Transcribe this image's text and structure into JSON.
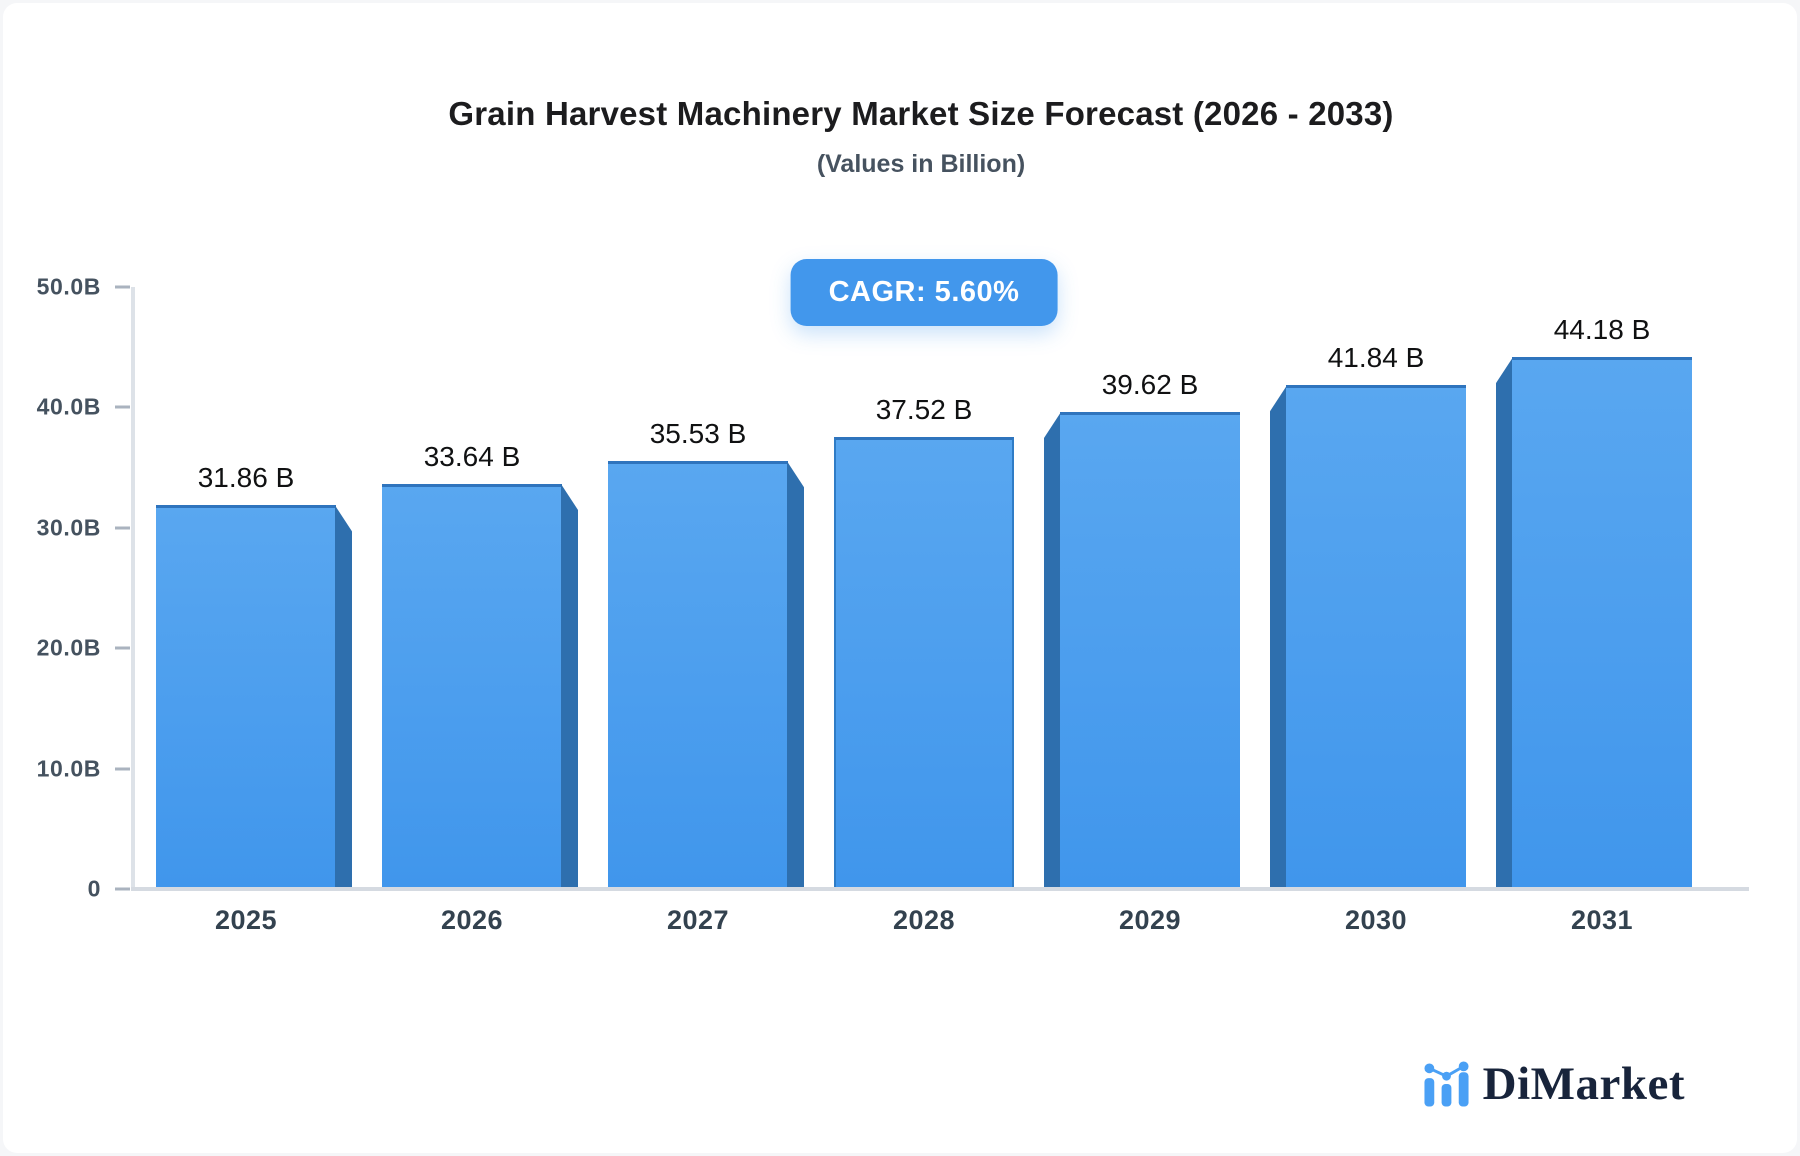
{
  "page": {
    "background": "#f5f6f8",
    "card_background": "#ffffff"
  },
  "header": {
    "title": "Grain Harvest Machinery Market Size Forecast (2026 - 2033)",
    "subtitle": "(Values in Billion)"
  },
  "badge": {
    "label": "CAGR: 5.60%",
    "background": "#4297ec",
    "text_color": "#ffffff"
  },
  "chart_data": {
    "type": "bar",
    "title": "Grain Harvest Machinery Market Size Forecast (2026 - 2033)",
    "subtitle": "(Values in Billion)",
    "categories": [
      "2025",
      "2026",
      "2027",
      "2028",
      "2029",
      "2030",
      "2031"
    ],
    "values": [
      31.86,
      33.64,
      35.53,
      37.52,
      39.62,
      41.84,
      44.18
    ],
    "value_labels": [
      "31.86 B",
      "33.64 B",
      "35.53 B",
      "37.52 B",
      "39.62 B",
      "41.84 B",
      "44.18 B"
    ],
    "y_ticks": [
      "50.0B",
      "40.0B",
      "30.0B",
      "20.0B",
      "10.0B",
      "0"
    ],
    "ylim": [
      0,
      50
    ],
    "xlabel": "",
    "ylabel": "",
    "grid": false,
    "legend": false,
    "annotation": "CAGR: 5.60%",
    "bar_color_top": "#59a7f0",
    "bar_color_bottom": "#4096ec",
    "bar_side_color": "#2e6fae",
    "bar_border_color": "#2f7cc6"
  },
  "logo": {
    "text": "DiMarket",
    "icon": "bar-chart-trend-icon",
    "accent": "#4aa0f5",
    "text_color": "#18243b"
  }
}
